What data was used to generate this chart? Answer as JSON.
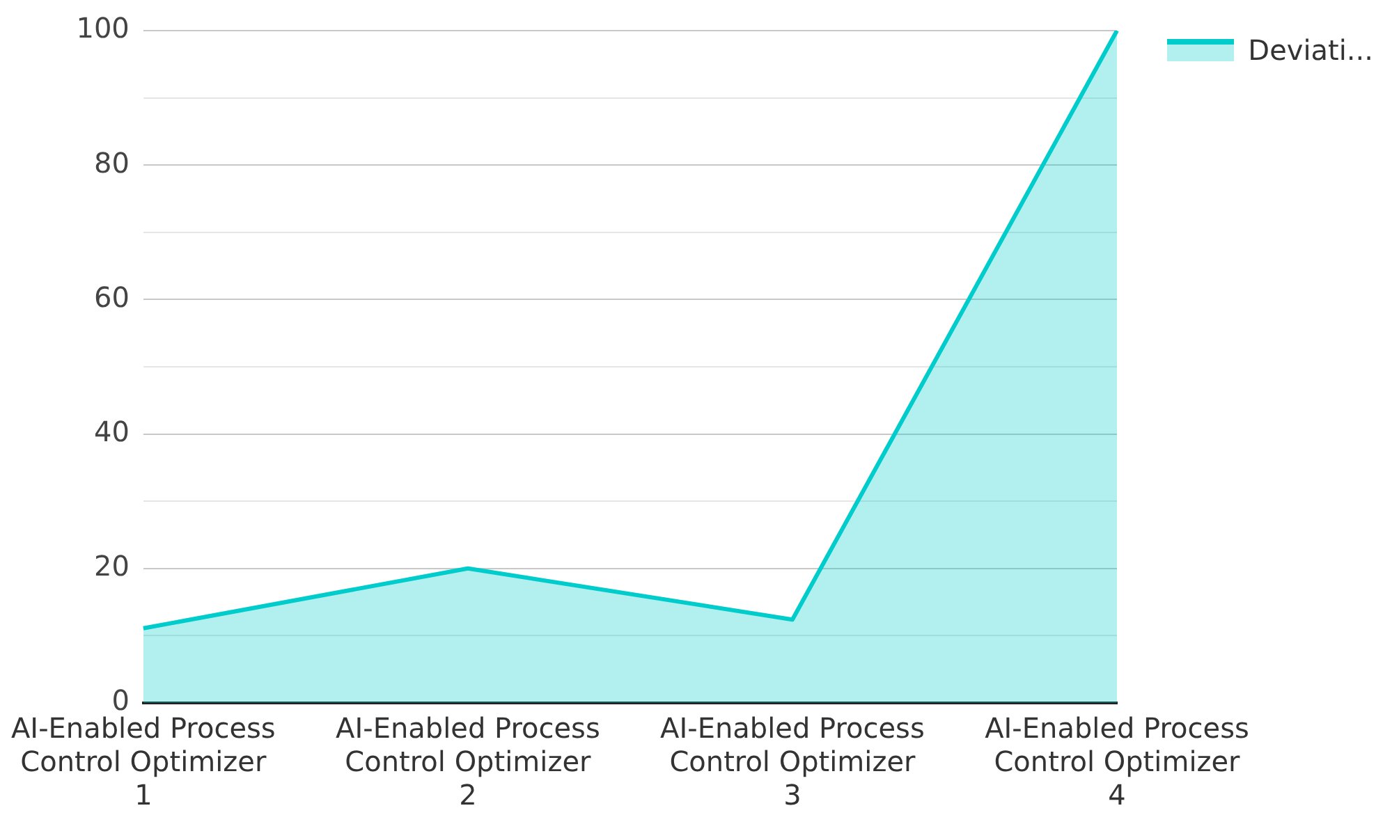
{
  "chart_data": {
    "type": "area",
    "categories": [
      "AI-Enabled Process Control Optimizer 1",
      "AI-Enabled Process Control Optimizer 2",
      "AI-Enabled Process Control Optimizer 3",
      "AI-Enabled Process Control Optimizer 4"
    ],
    "series": [
      {
        "name": "Deviati...",
        "color": "#00cccc",
        "values": [
          11.1,
          20,
          12.4,
          100
        ]
      }
    ],
    "ylim": [
      0,
      100
    ],
    "yticks": [
      0,
      {
        "value": 10,
        "label": null
      },
      20,
      {
        "value": 30,
        "label": null
      },
      40,
      {
        "value": 50,
        "label": null
      },
      60,
      {
        "value": 70,
        "label": null
      },
      80,
      {
        "value": 90,
        "label": null
      },
      100
    ],
    "grid": "y",
    "legend": "top right"
  }
}
